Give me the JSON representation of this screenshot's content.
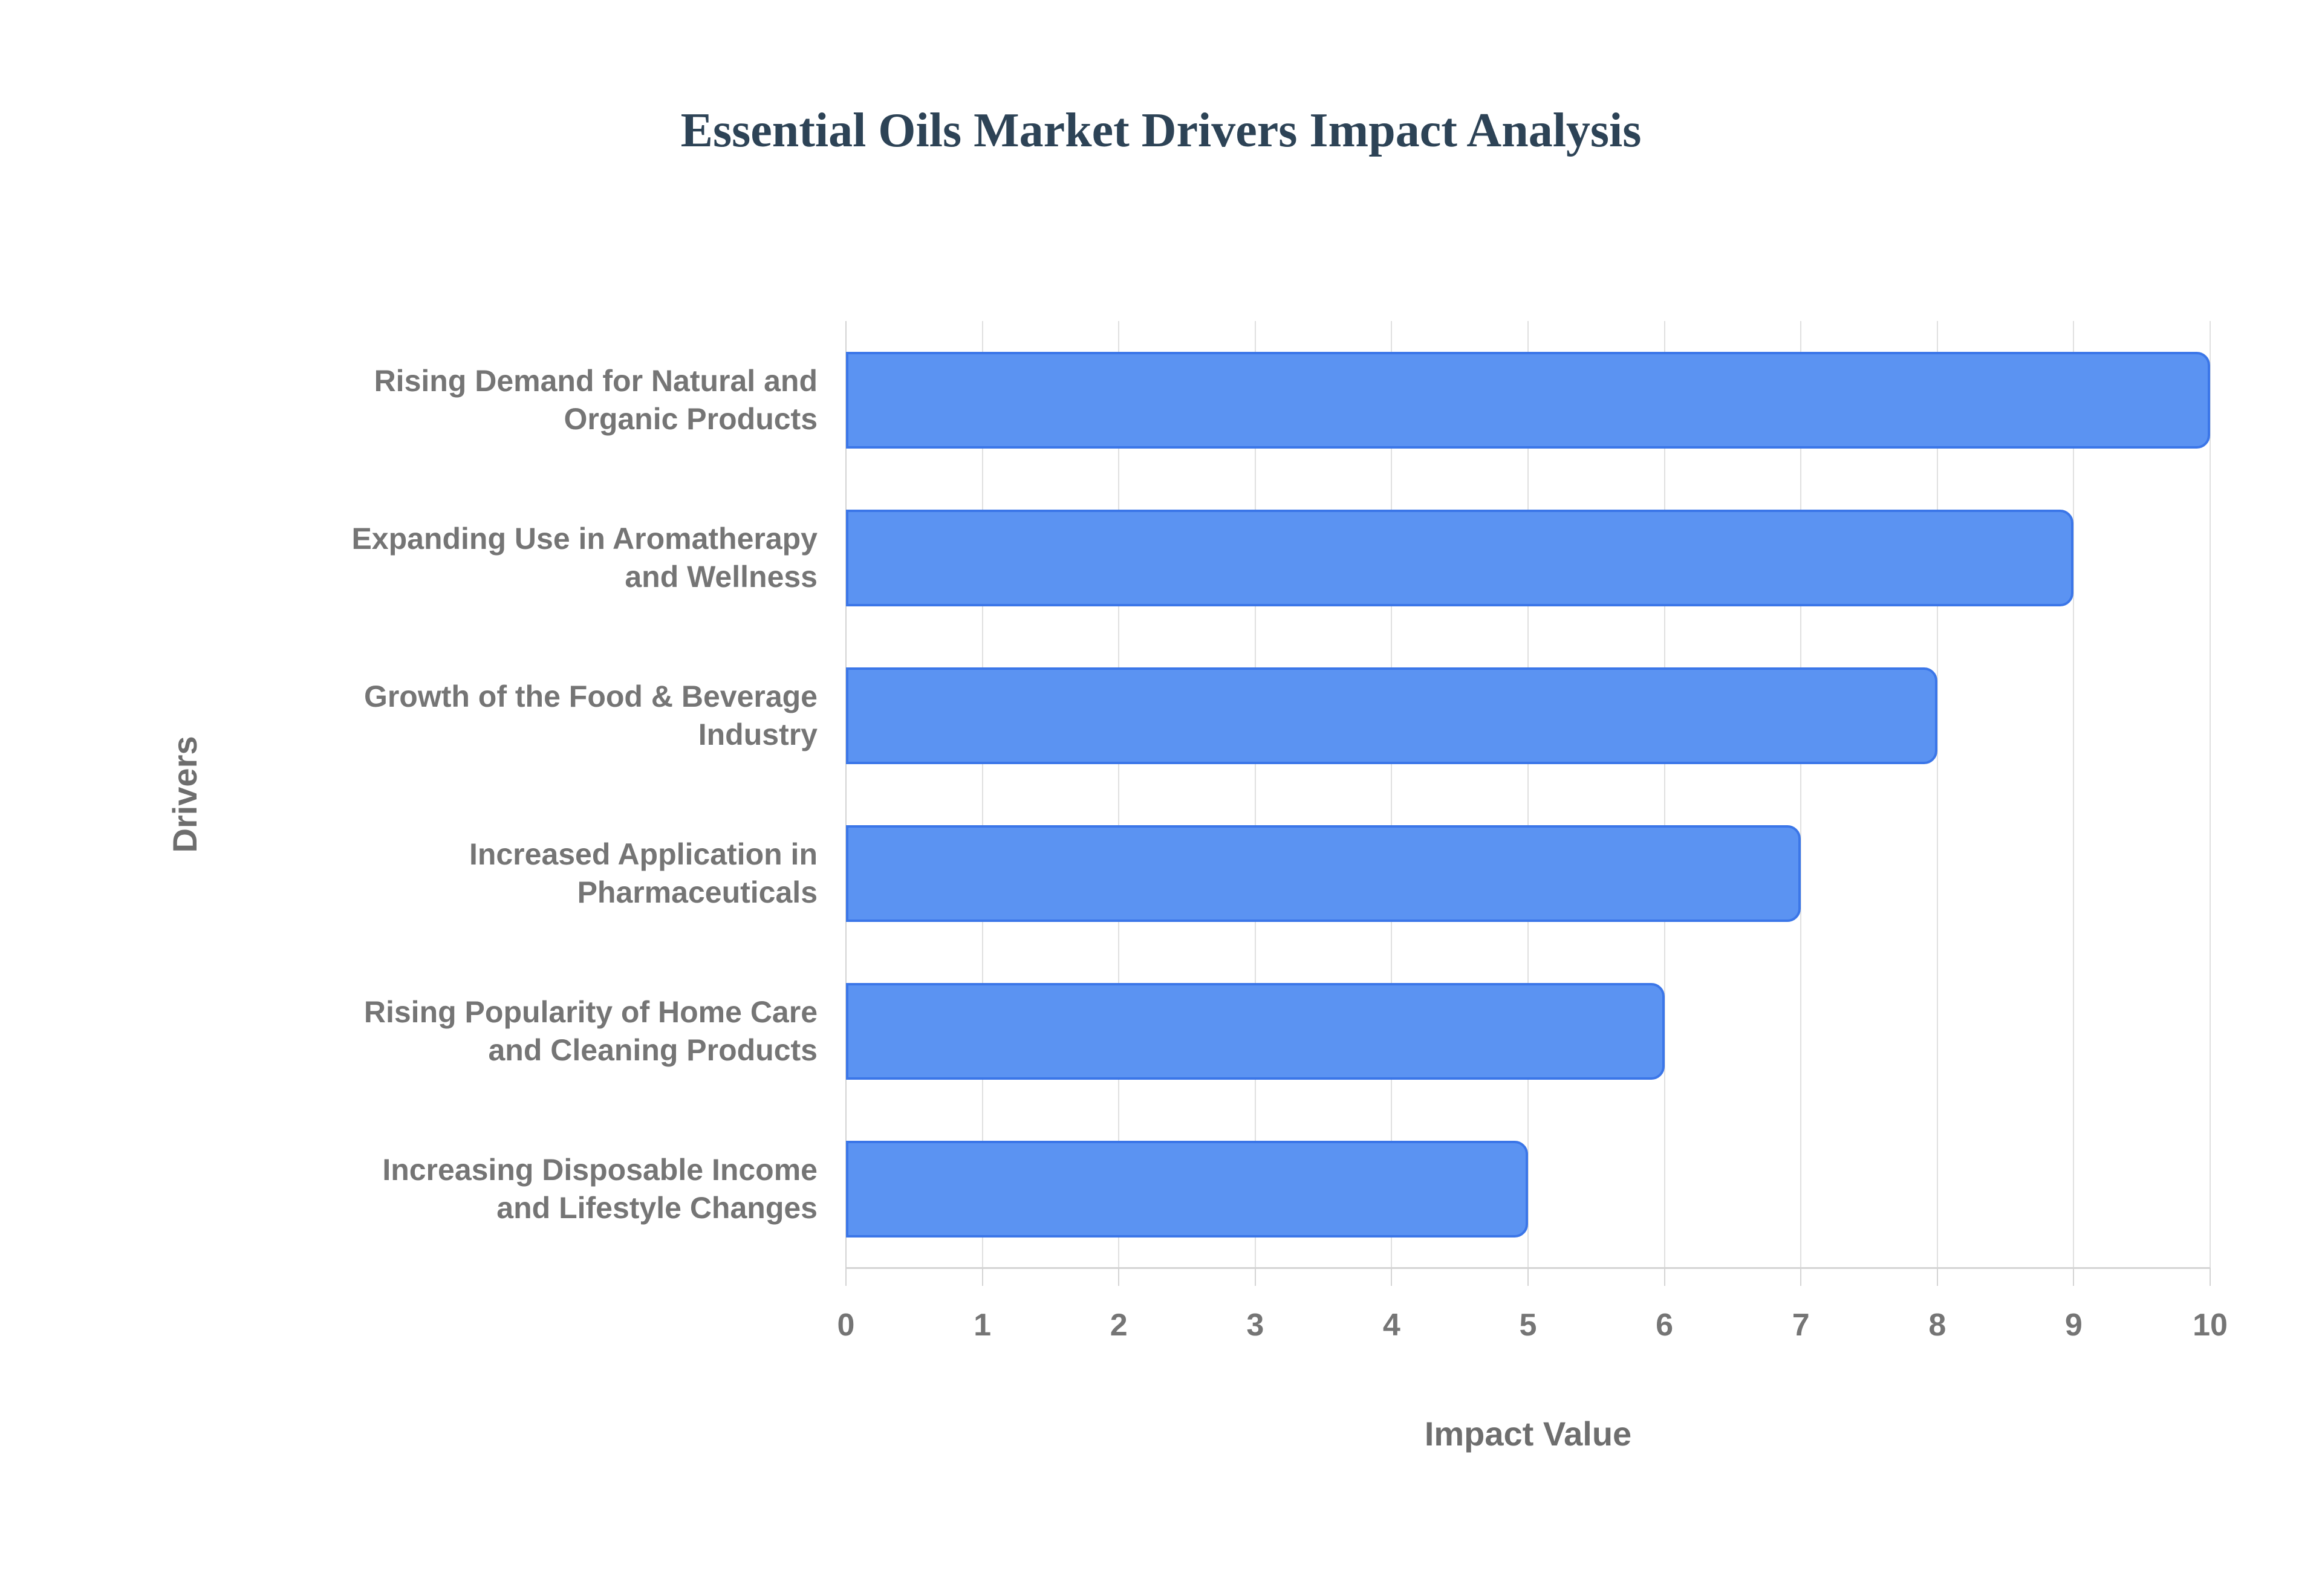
{
  "title": "Essential Oils Market Drivers Impact Analysis",
  "chart_data": {
    "type": "bar",
    "orientation": "horizontal",
    "title": "Essential Oils Market Drivers Impact Analysis",
    "xlabel": "Impact Value",
    "ylabel": "Drivers",
    "categories": [
      "Rising Demand for Natural and Organic Products",
      "Expanding Use in Aromatherapy and Wellness",
      "Growth of the Food & Beverage Industry",
      "Increased Application in Pharmaceuticals",
      "Rising Popularity of Home Care and Cleaning Products",
      "Increasing Disposable Income and Lifestyle Changes"
    ],
    "category_lines": [
      [
        "Rising Demand for Natural and",
        "Organic Products"
      ],
      [
        "Expanding Use in Aromatherapy",
        "and Wellness"
      ],
      [
        "Growth of the Food & Beverage",
        "Industry"
      ],
      [
        "Increased Application in",
        "Pharmaceuticals"
      ],
      [
        "Rising Popularity of Home Care",
        "and Cleaning Products"
      ],
      [
        "Increasing Disposable Income",
        "and Lifestyle Changes"
      ]
    ],
    "values": [
      10,
      9,
      8,
      7,
      6,
      5
    ],
    "xlim": [
      0,
      10
    ],
    "xticks": [
      0,
      1,
      2,
      3,
      4,
      5,
      6,
      7,
      8,
      9,
      10
    ],
    "grid": "vertical-only",
    "legend": "none",
    "colors": {
      "bar_fill": "#5B93F2",
      "bar_border": "#3B76E8",
      "gridline": "#E0E0E0",
      "axis": "#D4D4D4",
      "tick_label": "#757575",
      "category_label": "#757575",
      "axis_title": "#6E6E6E",
      "title": "#2D4356",
      "background": "#FFFFFF"
    }
  }
}
